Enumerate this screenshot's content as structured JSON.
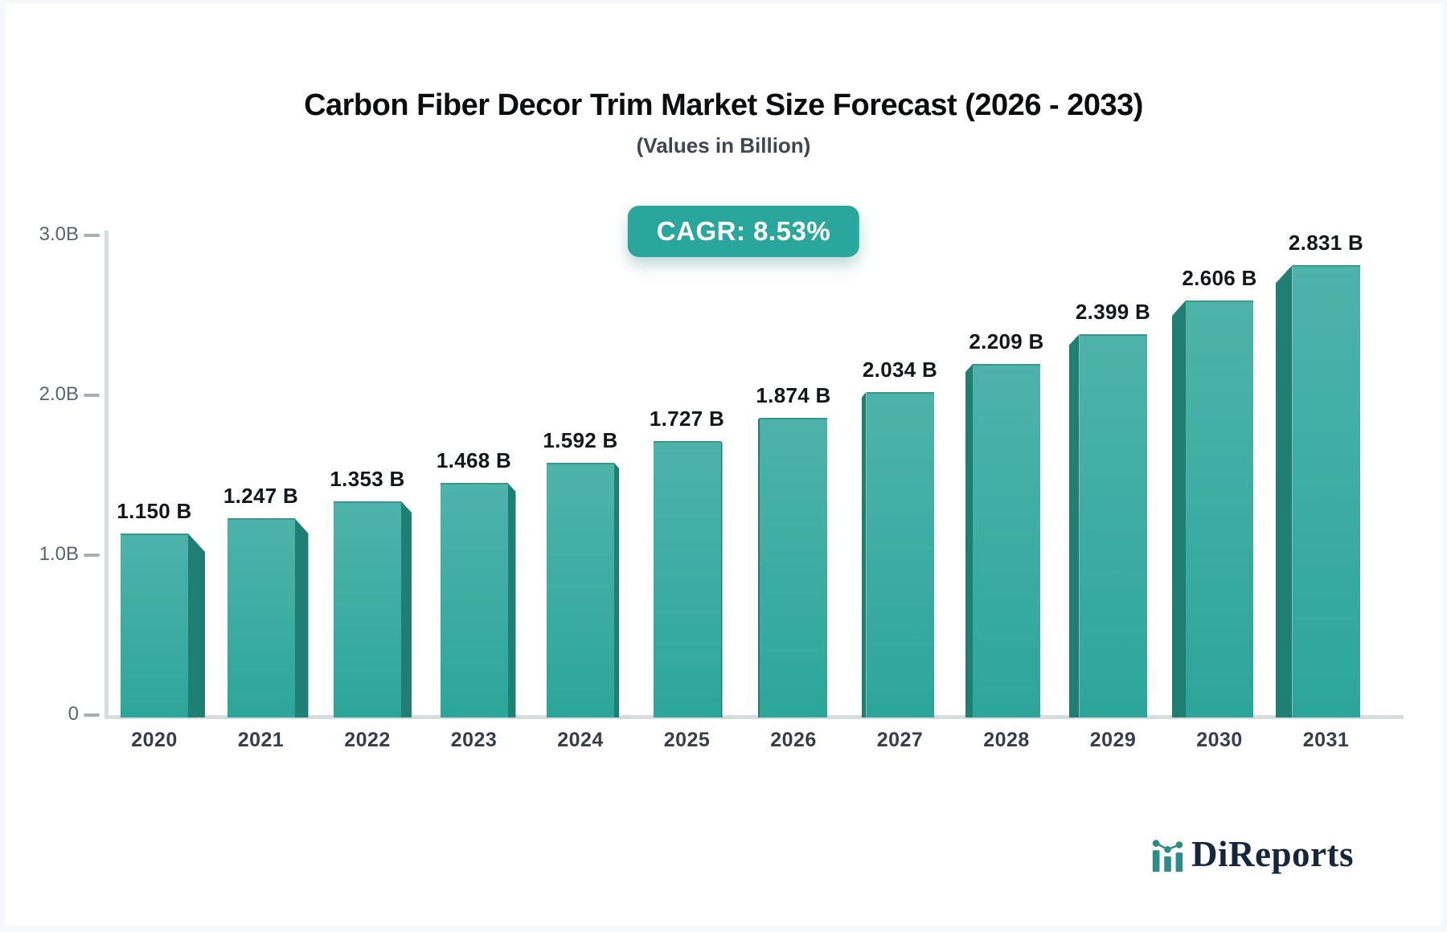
{
  "page": {
    "background": "#f7f8fb",
    "card_background": "#ffffff"
  },
  "chart_data": {
    "type": "bar",
    "title": "Carbon Fiber Decor Trim Market Size Forecast (2026 - 2033)",
    "subtitle": "(Values in Billion)",
    "annotation": "CAGR: 8.53%",
    "categories": [
      "2020",
      "2021",
      "2022",
      "2023",
      "2024",
      "2025",
      "2026",
      "2027",
      "2028",
      "2029",
      "2030",
      "2031"
    ],
    "values": [
      1.15,
      1.247,
      1.353,
      1.468,
      1.592,
      1.727,
      1.874,
      2.034,
      2.209,
      2.399,
      2.606,
      2.831
    ],
    "value_labels": [
      "1.150 B",
      "1.247 B",
      "1.353 B",
      "1.468 B",
      "1.592 B",
      "1.727 B",
      "1.874 B",
      "2.034 B",
      "2.209 B",
      "2.399 B",
      "2.606 B",
      "2.831 B"
    ],
    "xlabel": "",
    "ylabel": "",
    "ytick_labels": [
      "3.0B",
      "2.0B",
      "1.0B",
      "0"
    ],
    "ytick_values": [
      3.0,
      2.0,
      1.0,
      0
    ],
    "ylim": [
      0,
      3.0
    ],
    "grid": false,
    "legend": "none",
    "bar_style": "3d-perspective, side faces lean toward chart center",
    "colors": {
      "bar_front_top": "#4eb3aa",
      "bar_front_bottom": "#2ca69a",
      "bar_side": "#1f7f73",
      "axis_line": "#d7dade",
      "tick": "#a9afb9",
      "ytick_text": "#5a6472",
      "xtick_text": "#353f4c",
      "value_label_text": "#13161a",
      "badge_bg": "#2aa79c",
      "badge_text": "#ffffff",
      "title_text": "#0c0d0e",
      "subtitle_text": "#3c4654"
    }
  },
  "branding": {
    "logo_text": "DiReports",
    "logo_text_color": "#15273c",
    "logo_icon": "mini-bar-chart-icon",
    "logo_icon_color": "#2d8c86"
  }
}
